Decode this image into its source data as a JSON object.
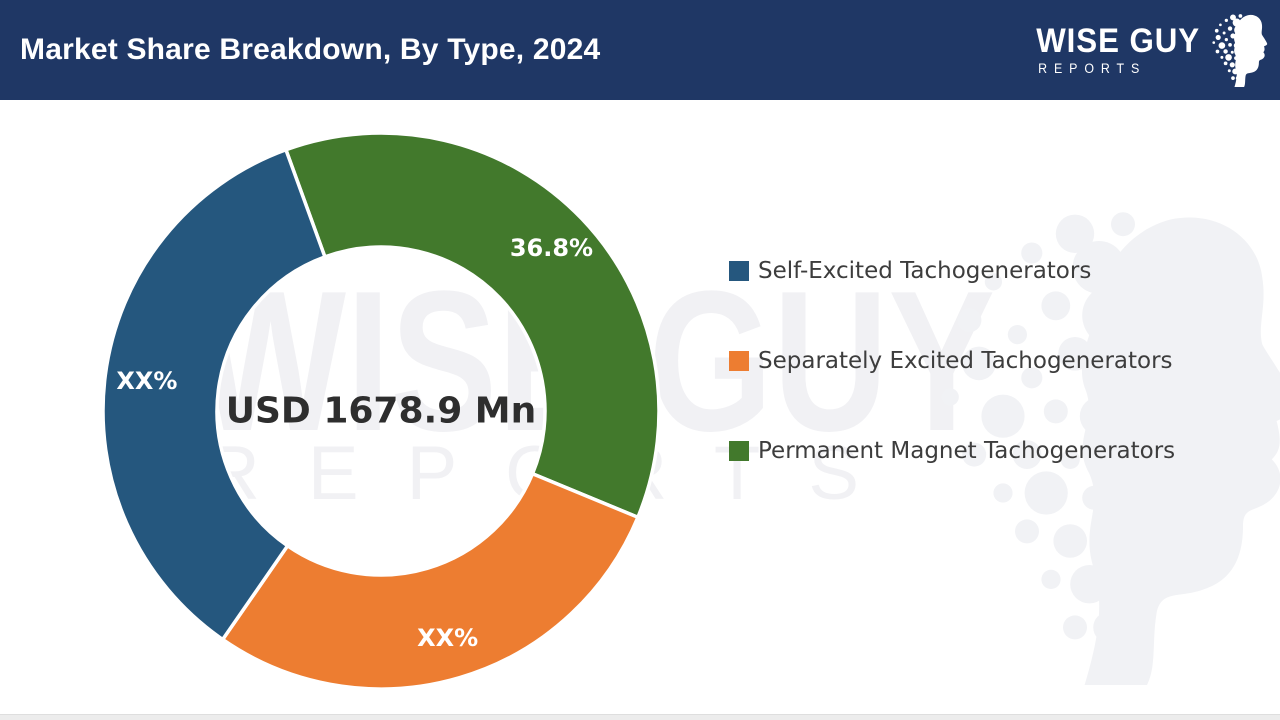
{
  "header": {
    "title": "Market Share Breakdown, By Type, 2024",
    "bg_color": "#1F3765"
  },
  "logo": {
    "name": "WISE GUY",
    "subtitle": "REPORTS"
  },
  "watermark": {
    "name": "WISE GUY",
    "subtitle": "REPORTS"
  },
  "chart_data": {
    "type": "pie",
    "variant": "donut",
    "title": "Market Share Breakdown, By Type, 2024",
    "center_text": "USD 1678.9 Mn",
    "start_angle_deg": -20,
    "direction": "clockwise",
    "slices": [
      {
        "name": "Permanent Magnet Tachogenerators",
        "display_label": "36.8%",
        "value_pct": 36.8,
        "color": "#42792C"
      },
      {
        "name": "Separately Excited Tachogenerators",
        "display_label": "XX%",
        "value_pct": 28.4,
        "color": "#ED7D31"
      },
      {
        "name": "Self-Excited Tachogenerators",
        "display_label": "XX%",
        "value_pct": 34.8,
        "color": "#25577E"
      }
    ],
    "legend_position": "right",
    "legend": [
      {
        "label": "Self-Excited Tachogenerators",
        "color": "#25577E"
      },
      {
        "label": "Separately Excited Tachogenerators",
        "color": "#ED7D31"
      },
      {
        "label": "Permanent Magnet Tachogenerators",
        "color": "#42792C"
      }
    ],
    "label_text_color": "#ffffff"
  }
}
